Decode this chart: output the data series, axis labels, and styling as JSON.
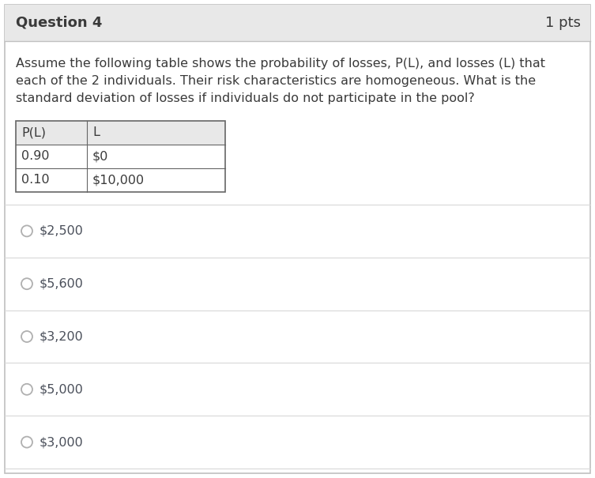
{
  "title": "Question 4",
  "pts": "1 pts",
  "question_text_lines": [
    "Assume the following table shows the probability of losses, P(L), and losses (L) that",
    "each of the 2 individuals. Their risk characteristics are homogeneous. What is the",
    "standard deviation of losses if individuals do not participate in the pool?"
  ],
  "table_headers": [
    "P(L)",
    "L"
  ],
  "table_rows": [
    [
      "0.90",
      "$0"
    ],
    [
      "0.10",
      "$10,000"
    ]
  ],
  "options": [
    "$2,500",
    "$5,600",
    "$3,200",
    "$5,000",
    "$3,000"
  ],
  "bg_color": "#ffffff",
  "title_bg_color": "#e8e8e8",
  "text_color": "#3a3a3a",
  "option_text_color": "#4a4f5a",
  "circle_color": "#b0b0b0",
  "divider_color": "#d8d8d8",
  "border_color": "#c0c0c0",
  "table_border_color": "#666666",
  "title_fontsize": 13,
  "body_fontsize": 11.5,
  "option_fontsize": 11.5
}
